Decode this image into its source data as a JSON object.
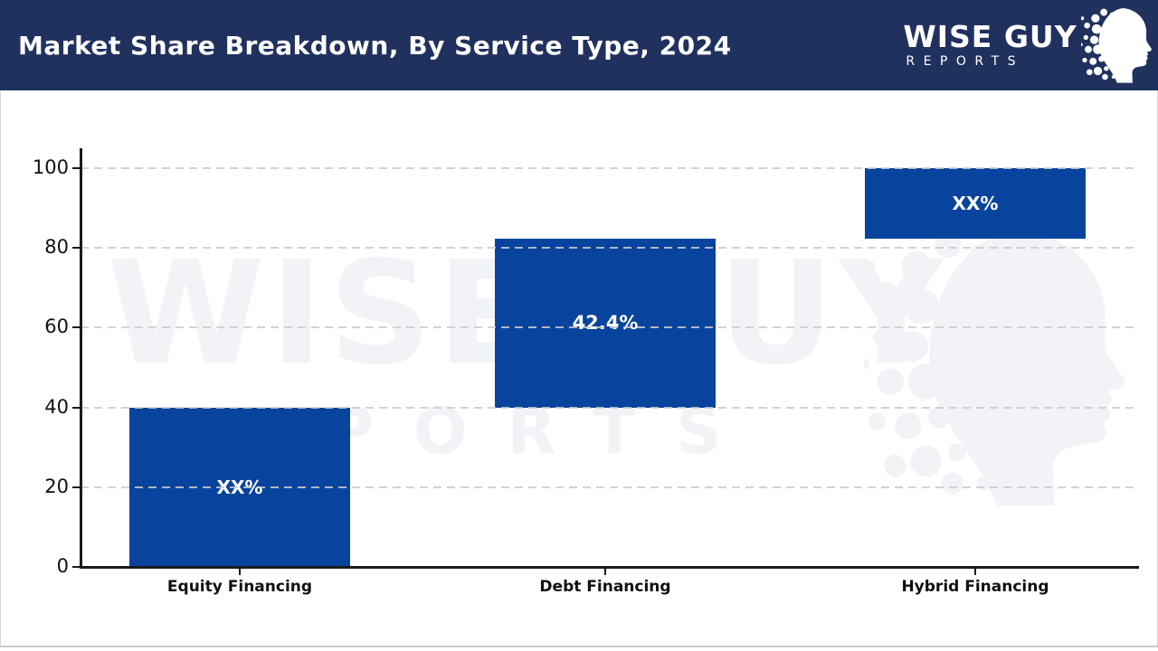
{
  "header": {
    "title": "Market Share Breakdown, By Service Type, 2024",
    "logo": {
      "line1": "WISE GUY",
      "line2": "REPORTS"
    }
  },
  "watermark": {
    "line1": "WISE GUY",
    "line2": "REPORTS"
  },
  "colors": {
    "header_bg": "#21315e",
    "bar": "#08449d",
    "axis": "#1a1a1a",
    "grid": "#cbcbce",
    "watermark": "#f2f3f6",
    "bar_label_text": "#ffffff",
    "title_text": "#ffffff"
  },
  "chart_data": {
    "type": "bar",
    "subtype": "floating-waterfall",
    "title": "Market Share Breakdown, By Service Type, 2024",
    "categories": [
      "Equity Financing",
      "Debt Financing",
      "Hybrid Financing"
    ],
    "segments": [
      {
        "category": "Equity Financing",
        "start": 0,
        "end": 40,
        "value": 40,
        "label": "XX%"
      },
      {
        "category": "Debt Financing",
        "start": 40,
        "end": 82.4,
        "value": 42.4,
        "label": "42.4%"
      },
      {
        "category": "Hybrid Financing",
        "start": 82.4,
        "end": 100,
        "value": 17.6,
        "label": "XX%"
      }
    ],
    "xlabel": "",
    "ylabel": "",
    "ylim": [
      0,
      100
    ],
    "yticks": [
      0,
      20,
      40,
      60,
      80,
      100
    ],
    "grid": "horizontal-dashed",
    "legend": "none"
  }
}
